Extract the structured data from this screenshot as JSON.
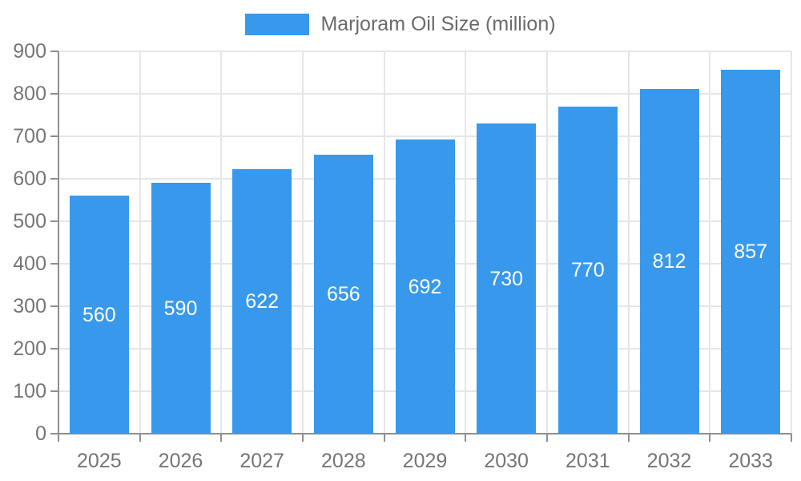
{
  "chart_data": {
    "type": "bar",
    "title": "",
    "legend_label": "Marjoram Oil Size (million)",
    "legend_position": "top",
    "categories": [
      "2025",
      "2026",
      "2027",
      "2028",
      "2029",
      "2030",
      "2031",
      "2032",
      "2033"
    ],
    "values": [
      560,
      590,
      622,
      656,
      692,
      730,
      770,
      812,
      857
    ],
    "xlabel": "",
    "ylabel": "",
    "ylim": [
      0,
      900
    ],
    "ytick_step": 100,
    "grid": true,
    "value_labels": "inside-center",
    "colors": {
      "bar": "#3899EC",
      "grid": "#e6e6e6",
      "axis": "#8f8f8f",
      "tick_label": "#757575",
      "legend_text": "#6b6b6b",
      "value_label": "#ffffff"
    }
  }
}
